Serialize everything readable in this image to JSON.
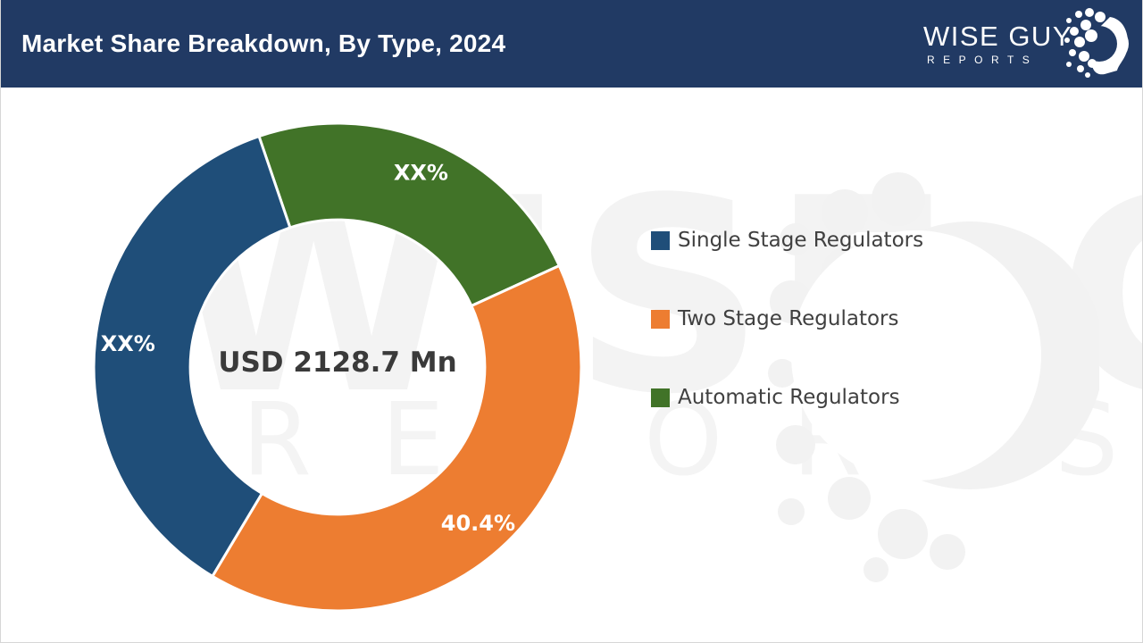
{
  "header": {
    "title": "Market Share Breakdown, By Type, 2024",
    "logo": {
      "line1": "WISE GUY",
      "line2": "REPORTS"
    }
  },
  "colors": {
    "header_bg": "#213a64",
    "single_stage_blue": "#1f4e79",
    "two_stage_orange": "#ed7d31",
    "automatic_green": "#417328",
    "center_text": "#3a3a3a",
    "border": "#d6d6d6"
  },
  "chart_data": {
    "type": "pie",
    "subtype": "donut",
    "title": "Market Share Breakdown, By Type, 2024",
    "center_label": "USD 2128.7 Mn",
    "start_angle_deg": -18.8,
    "inner_radius_ratio": 0.604,
    "legend_position": "right",
    "segments": [
      {
        "name": "Automatic Regulators",
        "value": 23.4,
        "display_label": "XX%",
        "color": "#417328"
      },
      {
        "name": "Two Stage Regulators",
        "value": 40.4,
        "display_label": "40.4%",
        "color": "#ed7d31"
      },
      {
        "name": "Single Stage Regulators",
        "value": 36.2,
        "display_label": "XX%",
        "color": "#1f4e79"
      }
    ],
    "legend": [
      {
        "label": "Single Stage Regulators",
        "color": "#1f4e79"
      },
      {
        "label": "Two Stage Regulators",
        "color": "#ed7d31"
      },
      {
        "label": "Automatic Regulators",
        "color": "#417328"
      }
    ]
  },
  "watermark": {
    "line1": "WISE GUY",
    "line2": "REPORTS"
  }
}
